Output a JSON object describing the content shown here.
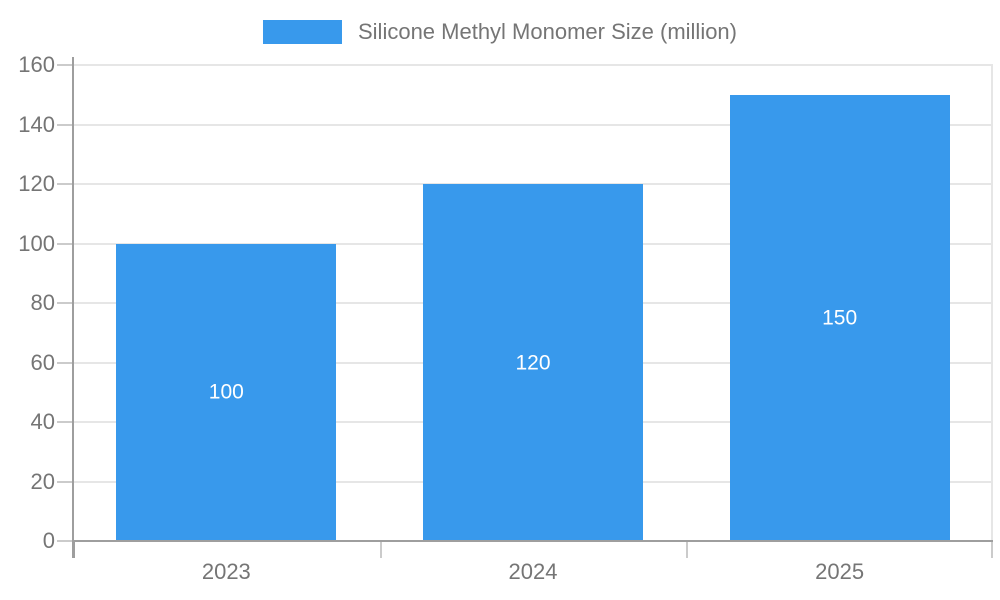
{
  "chart_data": {
    "type": "bar",
    "title": "",
    "categories": [
      "2023",
      "2024",
      "2025"
    ],
    "series": [
      {
        "name": "Silicone Methyl Monomer Size (million)",
        "values": [
          100,
          120,
          150
        ],
        "color": "#3899ec"
      }
    ],
    "data_labels": [
      "100",
      "120",
      "150"
    ],
    "data_label_color": "#ffffff",
    "xlabel": "",
    "ylabel": "",
    "ylim": [
      0,
      160
    ],
    "yticks": [
      0,
      20,
      40,
      60,
      80,
      100,
      120,
      140,
      160
    ],
    "grid": true,
    "legend_position": "top",
    "axis_text_color": "#757575",
    "gridline_color": "#e6e6e6",
    "axis_line_color": "#9e9e9e"
  }
}
